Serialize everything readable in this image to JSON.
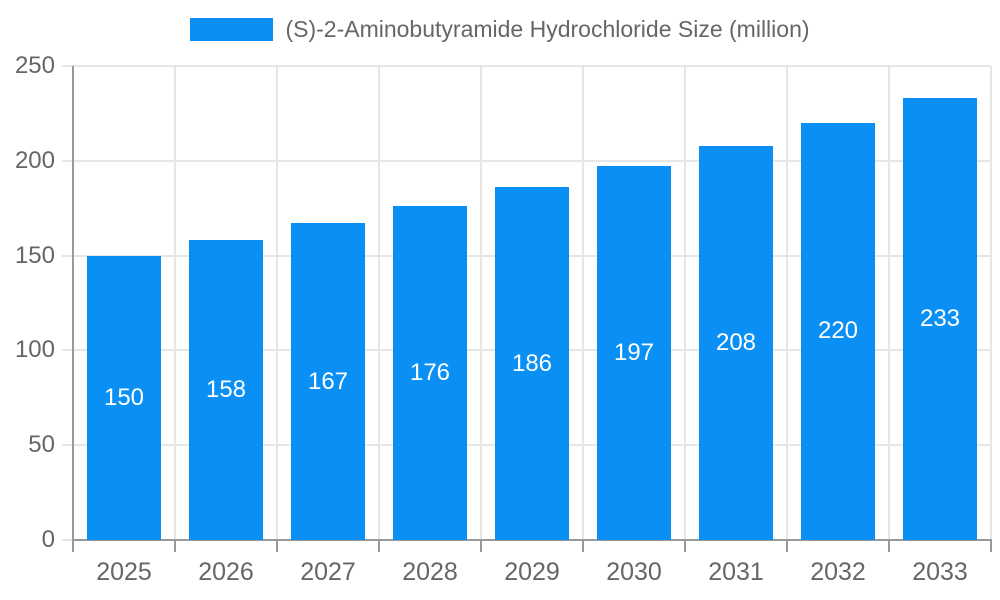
{
  "chart_data": {
    "type": "bar",
    "title": "(S)-2-Aminobutyramide Hydrochloride Size (million)",
    "categories": [
      "2025",
      "2026",
      "2027",
      "2028",
      "2029",
      "2030",
      "2031",
      "2032",
      "2033"
    ],
    "values": [
      150,
      158,
      167,
      176,
      186,
      197,
      208,
      220,
      233
    ],
    "xlabel": "",
    "ylabel": "",
    "ylim": [
      0,
      250
    ],
    "yticks": [
      0,
      50,
      100,
      150,
      200,
      250
    ],
    "grid": true,
    "legend_position": "top",
    "colors": {
      "bar": "#0a90f5",
      "value_label": "#ffffff",
      "axis_text": "#666666",
      "gridline": "#e6e6e6",
      "axis_line": "#999999",
      "background": "#ffffff"
    }
  }
}
